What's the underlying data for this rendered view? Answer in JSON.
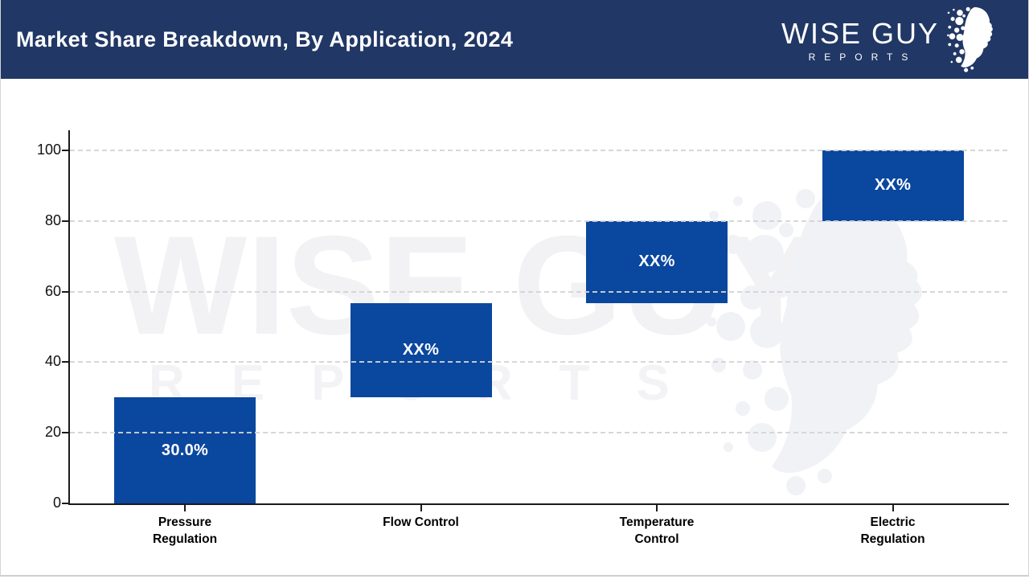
{
  "header": {
    "title": "Market Share Breakdown, By Application, 2024",
    "logo": {
      "line1": "WISE GUY",
      "line2": "REPORTS"
    }
  },
  "watermark": {
    "line1": "WISE GUY",
    "line2": "REPORTS"
  },
  "chart_data": {
    "type": "waterfall",
    "title": "Market Share Breakdown, By Application, 2024",
    "categories": [
      "Pressure\nRegulation",
      "Flow Control",
      "Temperature\nControl",
      "Electric\nRegulation"
    ],
    "segments": [
      {
        "category": "Pressure Regulation",
        "start": 0,
        "end": 30,
        "label": "30.0%"
      },
      {
        "category": "Flow Control",
        "start": 30,
        "end": 56.7,
        "label": "XX%"
      },
      {
        "category": "Temperature Control",
        "start": 56.7,
        "end": 80,
        "label": "XX%"
      },
      {
        "category": "Electric Regulation",
        "start": 80,
        "end": 100,
        "label": "XX%"
      }
    ],
    "xlabel": "",
    "ylabel": "",
    "ylim": [
      0,
      100
    ],
    "yticks": [
      0,
      20,
      40,
      60,
      80,
      100
    ],
    "grid": "horizontal-dashed-over-bars",
    "legend": null,
    "bar_color": "#0a479e",
    "bar_label_color": "#ffffff",
    "header_bg_color": "#213765",
    "watermark_color": "#f2f2f5"
  }
}
